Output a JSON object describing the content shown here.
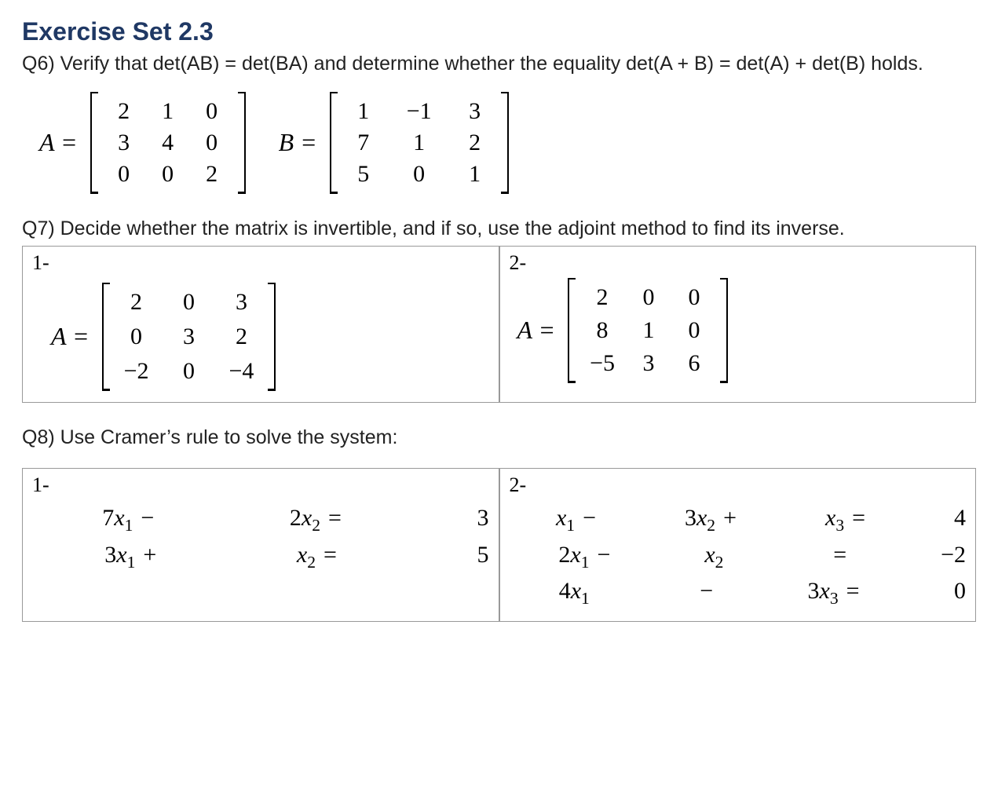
{
  "colors": {
    "title": "#1f3864",
    "body_text": "#222222",
    "background": "#ffffff",
    "border": "#999999",
    "black": "#000000"
  },
  "typography": {
    "title_fontsize": 32,
    "title_weight": "bold",
    "body_fontsize": 25,
    "math_fontsize": 30,
    "font_body": "Arial",
    "font_math": "Times New Roman"
  },
  "title": "Exercise Set 2.3",
  "q6": {
    "prompt": "Q6) Verify that det(AB) = det(BA) and determine whether the equality det(A + B) = det(A) + det(B) holds.",
    "A_label": "A =",
    "B_label": "B =",
    "A": [
      [
        "2",
        "1",
        "0"
      ],
      [
        "3",
        "4",
        "0"
      ],
      [
        "0",
        "0",
        "2"
      ]
    ],
    "B": [
      [
        "1",
        "−1",
        "3"
      ],
      [
        "7",
        "1",
        "2"
      ],
      [
        "5",
        "0",
        "1"
      ]
    ]
  },
  "q7": {
    "prompt": "Q7) Decide whether the matrix is invertible, and if so, use the adjoint method to find its inverse.",
    "item1_label": "1-",
    "item2_label": "2-",
    "A_label": "A =",
    "A1": [
      [
        "2",
        "0",
        "3"
      ],
      [
        "0",
        "3",
        "2"
      ],
      [
        "−2",
        "0",
        "−4"
      ]
    ],
    "A2": [
      [
        "2",
        "0",
        "0"
      ],
      [
        "8",
        "1",
        "0"
      ],
      [
        "−5",
        "3",
        "6"
      ]
    ]
  },
  "q8": {
    "prompt": "Q8) Use Cramer’s rule to solve the system:",
    "item1_label": "1-",
    "item2_label": "2-",
    "sys1": {
      "rows": [
        {
          "c1": "7x₁",
          "c2": "−",
          "c3": "2x₂",
          "c4": "=",
          "c5": "3"
        },
        {
          "c1": "3x₁",
          "c2": "+",
          "c3": "x₂",
          "c4": "=",
          "c5": "5"
        }
      ],
      "col_template": "auto auto auto auto auto",
      "col_align": [
        "txr",
        "txl",
        "txr",
        "txl",
        "txr"
      ]
    },
    "sys2": {
      "rows": [
        {
          "c1": "x₁",
          "c2": "−",
          "c3": "3x₂",
          "c4": "+",
          "c5": "x₃",
          "c6": "=",
          "c7": "4"
        },
        {
          "c1": "2x₁",
          "c2": "−",
          "c3": "x₂",
          "c4": "",
          "c5": "",
          "c6": "=",
          "c7": "−2"
        },
        {
          "c1": "4x₁",
          "c2": "",
          "c3": "",
          "c4": "−",
          "c5": "3x₃",
          "c6": "=",
          "c7": "0"
        }
      ],
      "col_template": "auto auto auto auto auto auto auto",
      "col_align": [
        "txr",
        "txl",
        "txr",
        "txl",
        "txr",
        "txl",
        "txr"
      ]
    }
  }
}
